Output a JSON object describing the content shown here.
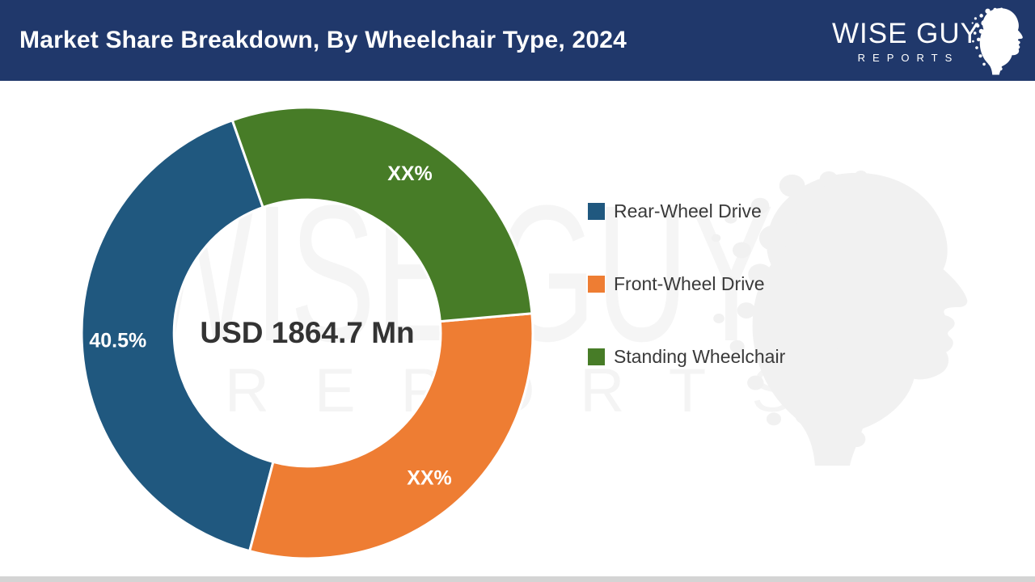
{
  "header": {
    "title": "Market Share Breakdown, By Wheelchair Type, 2024",
    "logo": {
      "line1": "WISE GUY",
      "line2": "REPORTS"
    }
  },
  "chart_data": {
    "type": "pie",
    "subtype": "donut",
    "title": "Market Share Breakdown, By Wheelchair Type, 2024",
    "center_label": "USD 1864.7 Mn",
    "start_angle_deg": 109.4,
    "direction": "counterclockwise",
    "inner_radius_frac": 0.591,
    "label_radius_frac": 0.84,
    "legend_position": "right",
    "series": [
      {
        "name": "Rear-Wheel Drive",
        "value_pct": 40.5,
        "label": "40.5%",
        "color": "#20587F"
      },
      {
        "name": "Front-Wheel Drive",
        "value_pct": 30.5,
        "label": "XX%",
        "color": "#EE7D33"
      },
      {
        "name": "Standing Wheelchair",
        "value_pct": 29.0,
        "label": "XX%",
        "color": "#477C27"
      }
    ]
  },
  "legend": {
    "items": [
      {
        "name": "Rear-Wheel Drive",
        "color": "#20587F"
      },
      {
        "name": "Front-Wheel Drive",
        "color": "#EE7D33"
      },
      {
        "name": "Standing Wheelchair",
        "color": "#477C27"
      }
    ]
  },
  "watermark": {
    "line1": "WISE GUY",
    "line2": "REPORTS"
  },
  "colors": {
    "header_bg": "#20386B",
    "title_text": "#ffffff",
    "center_text": "#333333",
    "watermark": "#f4f4f4",
    "footer_strip": "#d4d4d4"
  }
}
